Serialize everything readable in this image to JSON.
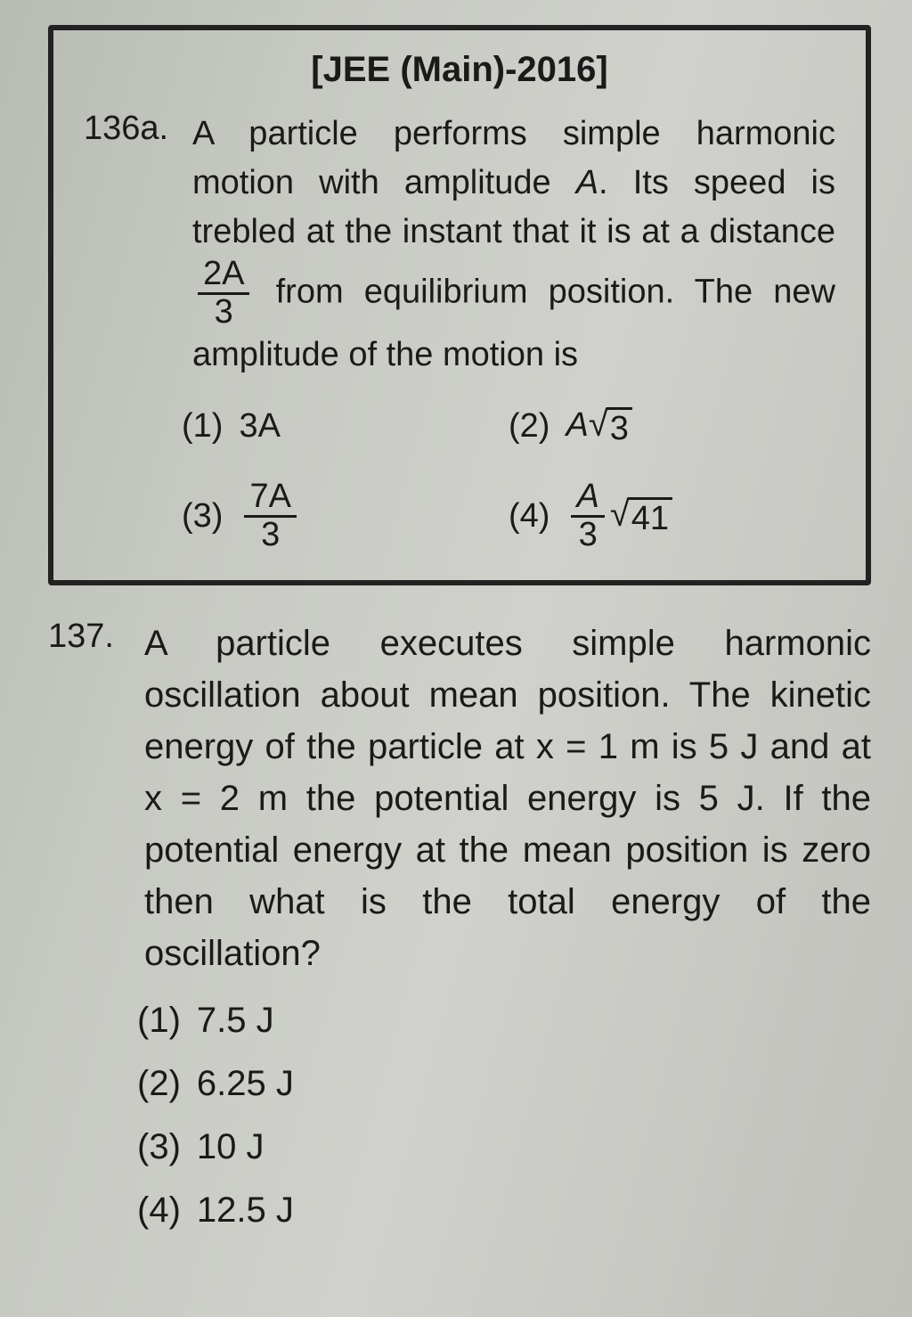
{
  "page": {
    "background_color": "#c6c8c2",
    "text_color": "#1a1a1a",
    "border_color": "#222222",
    "font_family": "Arial",
    "base_fontsize": 38
  },
  "box": {
    "tag": "[JEE (Main)-2016]",
    "border_width": 6
  },
  "q136a": {
    "number": "136a.",
    "text_part1": "A particle performs simple harmonic motion with amplitude ",
    "var_A": "A",
    "text_part2": ". Its speed is trebled at the instant that it is at a distance ",
    "frac_num": "2A",
    "frac_den": "3",
    "text_part3": " from equilibrium position. The new amplitude of the motion is",
    "options": {
      "o1": {
        "label": "(1)",
        "text": "3A"
      },
      "o2": {
        "label": "(2)",
        "prefix": "A",
        "radicand": "3"
      },
      "o3": {
        "label": "(3)",
        "frac_num": "7A",
        "frac_den": "3"
      },
      "o4": {
        "label": "(4)",
        "frac_num": "A",
        "frac_den": "3",
        "radicand": "41"
      }
    }
  },
  "q137": {
    "number": "137.",
    "text": "A particle executes simple harmonic oscillation about mean position. The kinetic energy of the particle at x = 1 m is 5 J and at x = 2 m the potential energy is 5 J. If the potential energy at the mean position is zero then what is the total energy of the oscillation?",
    "options": {
      "o1": {
        "label": "(1)",
        "text": "7.5 J"
      },
      "o2": {
        "label": "(2)",
        "text": "6.25 J"
      },
      "o3": {
        "label": "(3)",
        "text": "10 J"
      },
      "o4": {
        "label": "(4)",
        "text": "12.5 J"
      }
    }
  }
}
